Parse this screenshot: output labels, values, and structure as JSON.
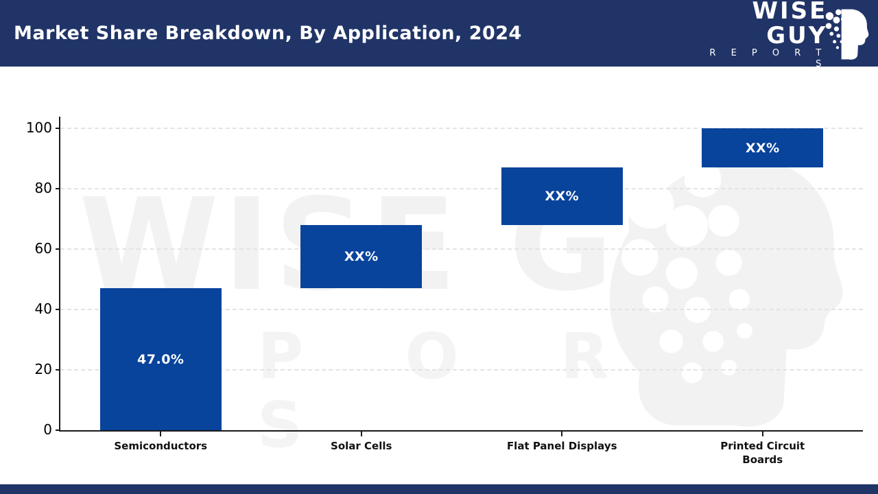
{
  "header": {
    "title": "Market Share Breakdown, By Application, 2024",
    "logo_line1": "WISE GUY",
    "logo_line2": "R E P O R T S",
    "bg_color": "#203467"
  },
  "watermark": {
    "line1": "WISE GUY",
    "line2": "P O R T S"
  },
  "chart_data": {
    "type": "bar",
    "subtype": "floating-waterfall",
    "title": "Market Share Breakdown, By Application, 2024",
    "xlabel": "",
    "ylabel": "",
    "ylim": [
      0,
      100
    ],
    "yticks": [
      0,
      20,
      40,
      60,
      80,
      100
    ],
    "grid": "horizontal-dashed",
    "legend": "none",
    "bar_color": "#08439c",
    "categories": [
      "Semiconductors",
      "Solar Cells",
      "Flat Panel Displays",
      "Printed Circuit Boards"
    ],
    "segments": [
      {
        "category": "Semiconductors",
        "start": 0,
        "end": 47,
        "value": 47,
        "label": "47.0%"
      },
      {
        "category": "Solar Cells",
        "start": 47,
        "end": 68,
        "value": 21,
        "label": "XX%"
      },
      {
        "category": "Flat Panel Displays",
        "start": 68,
        "end": 87,
        "value": 19,
        "label": "XX%"
      },
      {
        "category": "Printed Circuit Boards",
        "start": 87,
        "end": 100,
        "value": 13,
        "label": "XX%"
      }
    ]
  }
}
